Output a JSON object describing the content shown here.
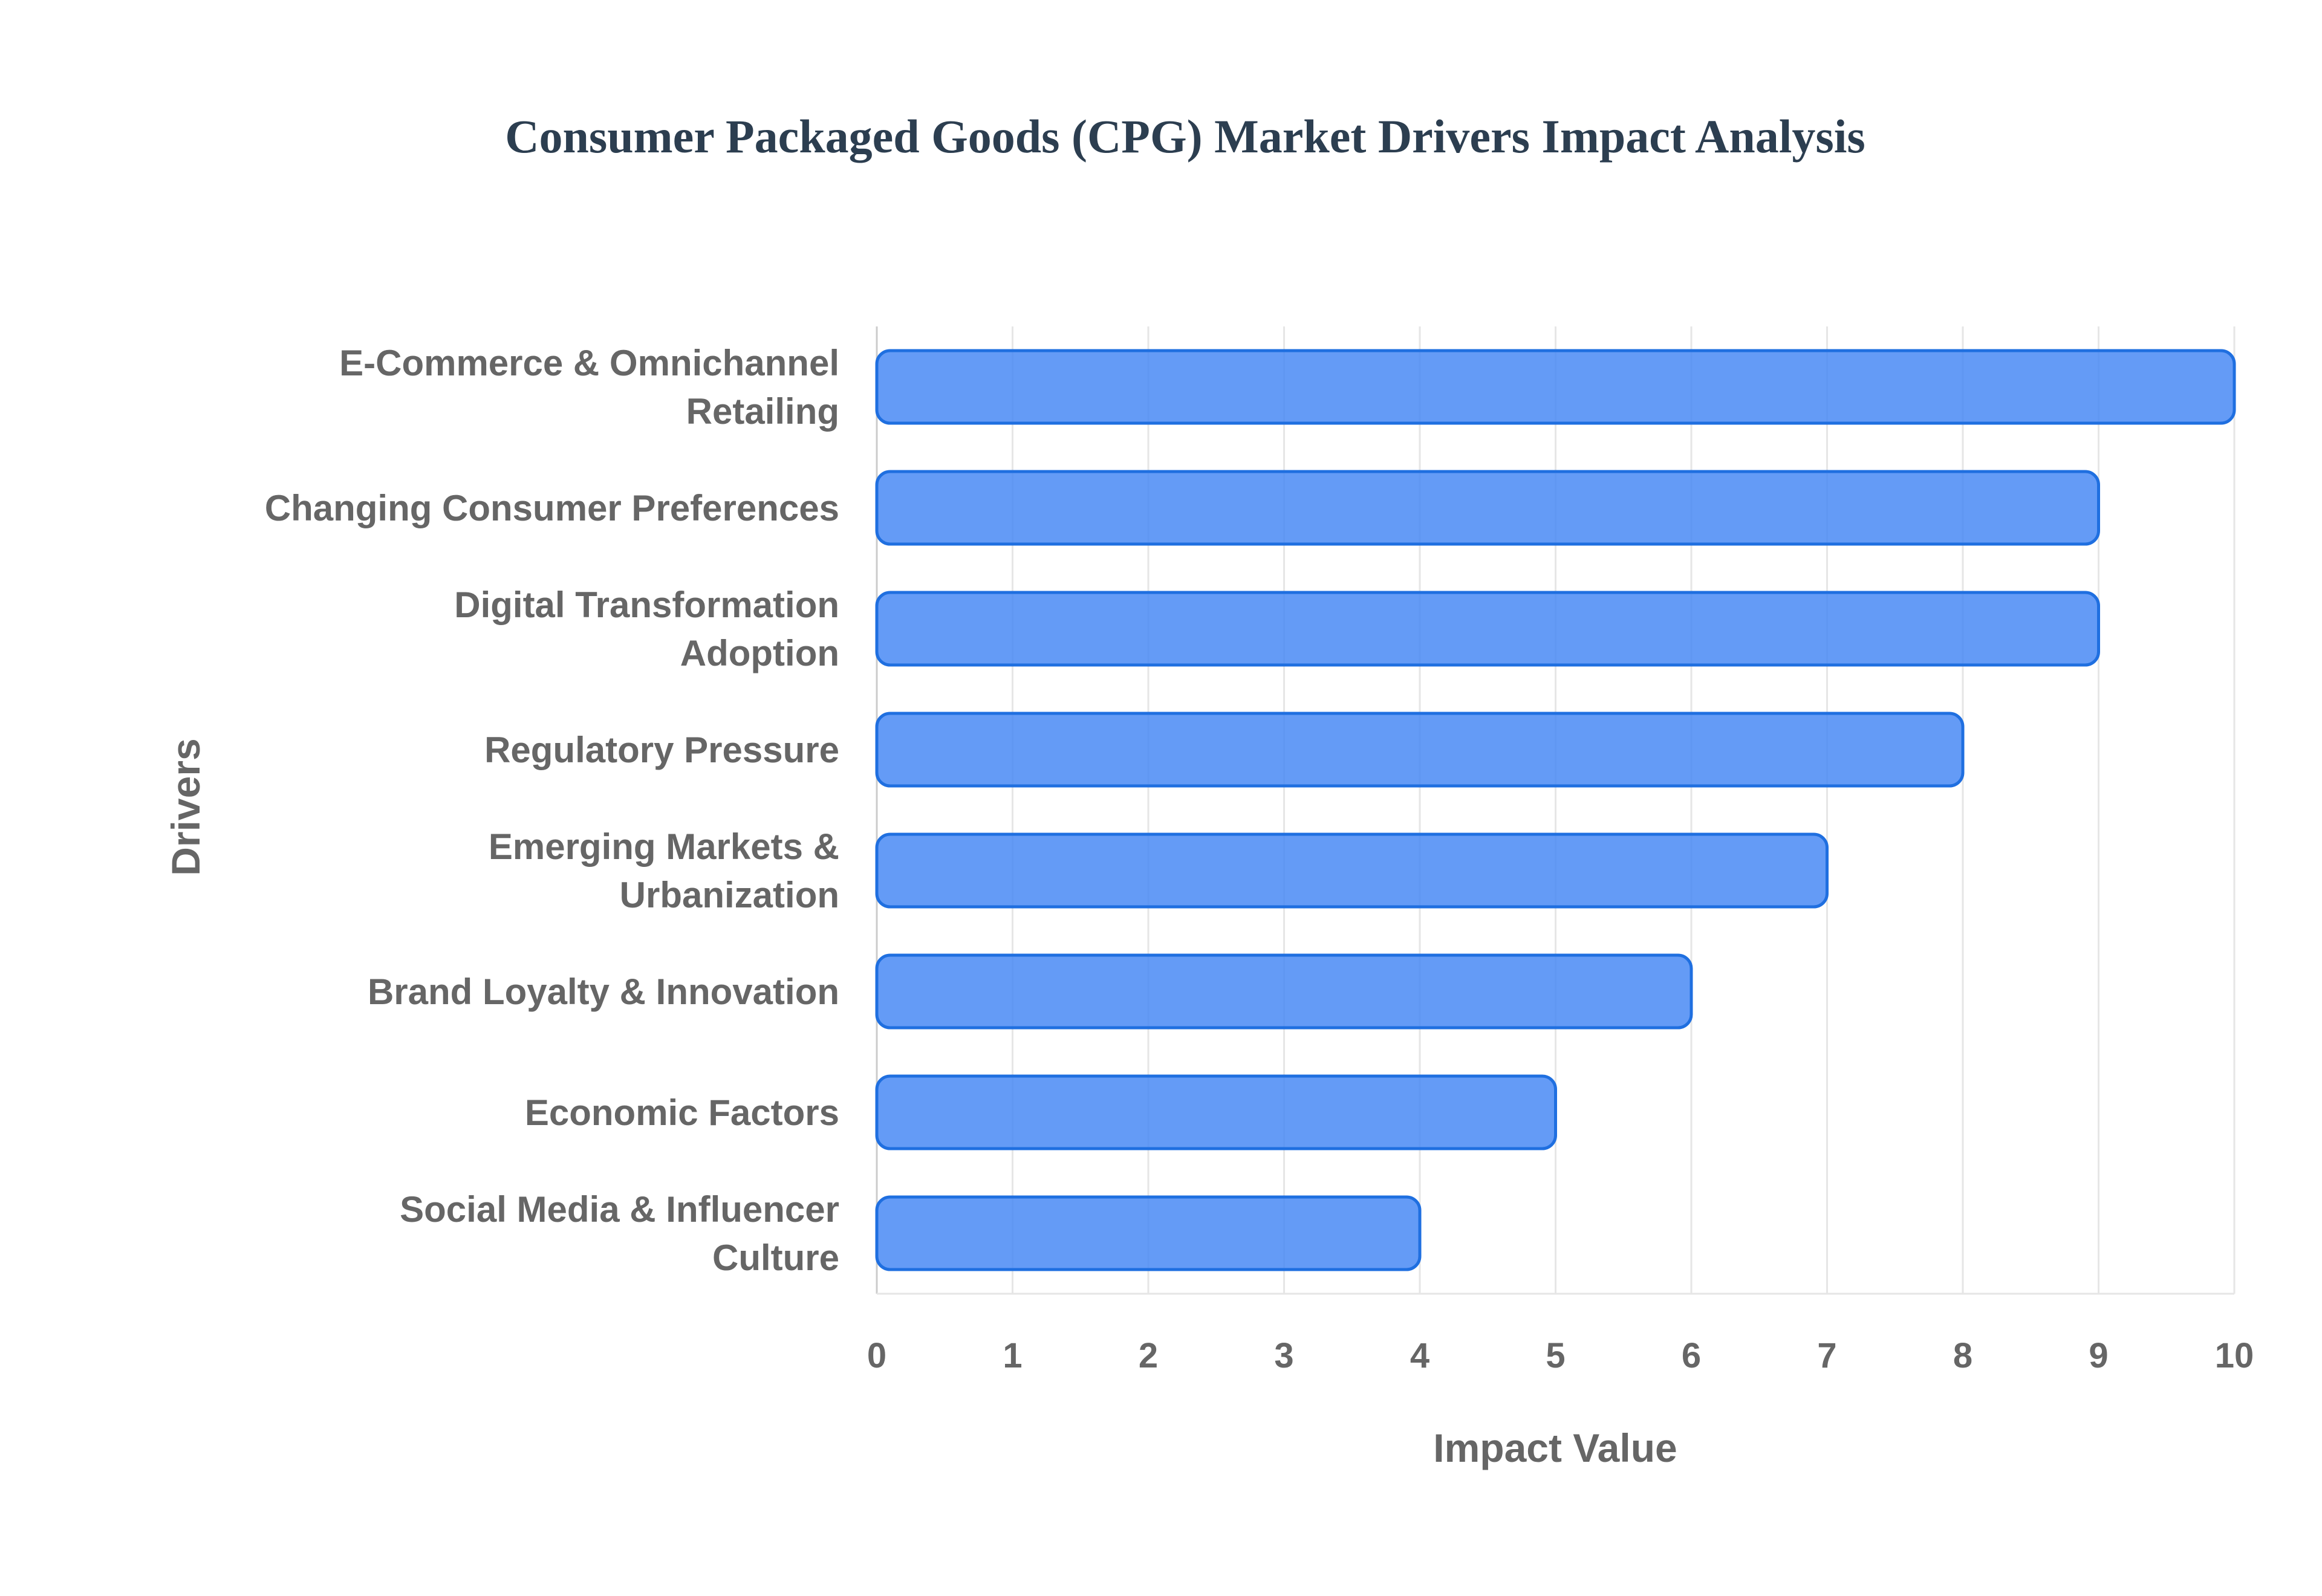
{
  "chart_data": {
    "type": "bar",
    "orientation": "horizontal",
    "title": "Consumer Packaged Goods (CPG) Market Drivers Impact Analysis",
    "xlabel": "Impact Value",
    "ylabel": "Drivers",
    "xlim": [
      0,
      10
    ],
    "xticks": [
      "0",
      "1",
      "2",
      "3",
      "4",
      "5",
      "6",
      "7",
      "8",
      "9",
      "10"
    ],
    "grid": true,
    "legend": "none",
    "categories": [
      [
        "E-Commerce & Omnichannel",
        "Retailing"
      ],
      [
        "Changing Consumer Preferences"
      ],
      [
        "Digital Transformation",
        "Adoption"
      ],
      [
        "Regulatory Pressure"
      ],
      [
        "Emerging Markets &",
        "Urbanization"
      ],
      [
        "Brand Loyalty & Innovation"
      ],
      [
        "Economic Factors"
      ],
      [
        "Social Media & Influencer",
        "Culture"
      ]
    ],
    "values": [
      10,
      9,
      9,
      8,
      7,
      6,
      5,
      4
    ],
    "colors": {
      "bar_fill": "#4285f4",
      "bar_stroke": "#1f6fe0",
      "title": "#2c3e50",
      "text": "#666666",
      "grid": "#e6e6e6"
    }
  }
}
